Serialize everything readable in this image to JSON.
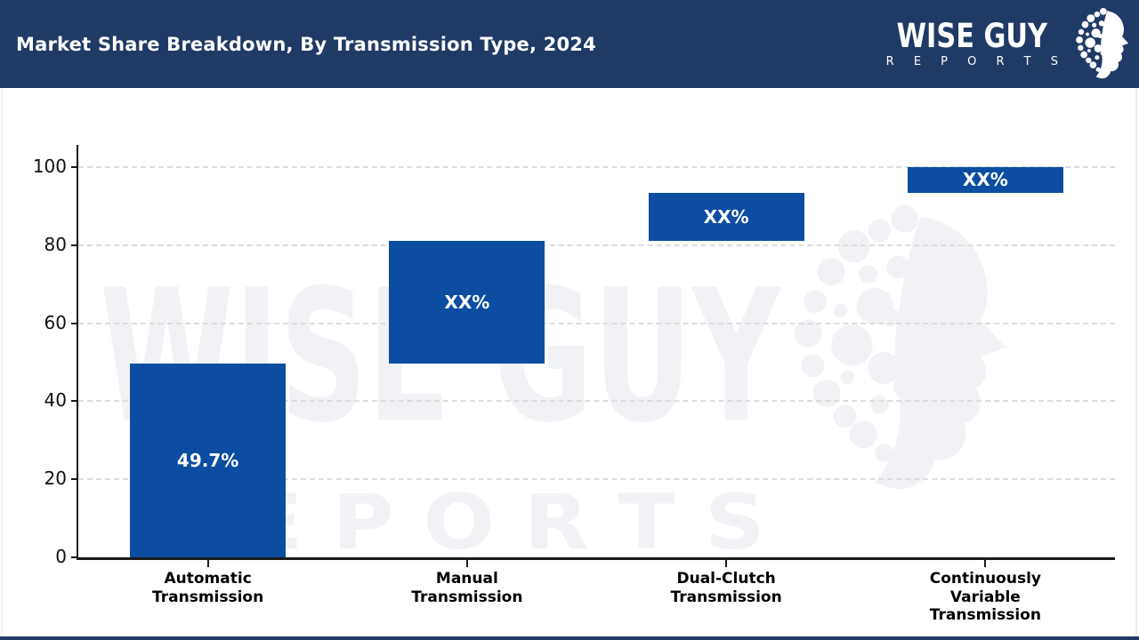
{
  "header": {
    "title": "Market Share Breakdown, By Transmission Type, 2024",
    "logo_primary": "WISE GUY",
    "logo_secondary": "R E P O R T S"
  },
  "watermark": {
    "primary": "WISE GUY",
    "secondary": "R E P O R T S"
  },
  "colors": {
    "header_bg": "#203a66",
    "bar": "#0c4da2",
    "grid": "#dcdcdc",
    "axis": "#1a1a1a",
    "bar_label": "#ffffff",
    "watermark": "#f0f2f5"
  },
  "chart_data": {
    "type": "bar",
    "subtype": "waterfall",
    "title": "Market Share Breakdown, By Transmission Type, 2024",
    "unit": "%",
    "categories": [
      "Automatic Transmission",
      "Manual Transmission",
      "Dual-Clutch Transmission",
      "Continuously Variable Transmission"
    ],
    "category_lines": [
      [
        "Automatic",
        "Transmission"
      ],
      [
        "Manual",
        "Transmission"
      ],
      [
        "Dual-Clutch",
        "Transmission"
      ],
      [
        "Continuously",
        "Variable",
        "Transmission"
      ]
    ],
    "segments": [
      {
        "category": "Automatic Transmission",
        "start": 0,
        "end": 49.7,
        "value": 49.7,
        "label": "49.7%"
      },
      {
        "category": "Manual Transmission",
        "start": 49.7,
        "end": 81.2,
        "value": 31.5,
        "label": "XX%"
      },
      {
        "category": "Dual-Clutch Transmission",
        "start": 81.2,
        "end": 93.4,
        "value": 12.2,
        "label": "XX%"
      },
      {
        "category": "Continuously Variable Transmission",
        "start": 93.4,
        "end": 100,
        "value": 6.6,
        "label": "XX%"
      }
    ],
    "xlabel": "",
    "ylabel": "",
    "ylim": [
      0,
      100
    ],
    "yticks": [
      0,
      20,
      40,
      60,
      80,
      100
    ],
    "grid": "horizontal-dashed",
    "legend": "none"
  }
}
